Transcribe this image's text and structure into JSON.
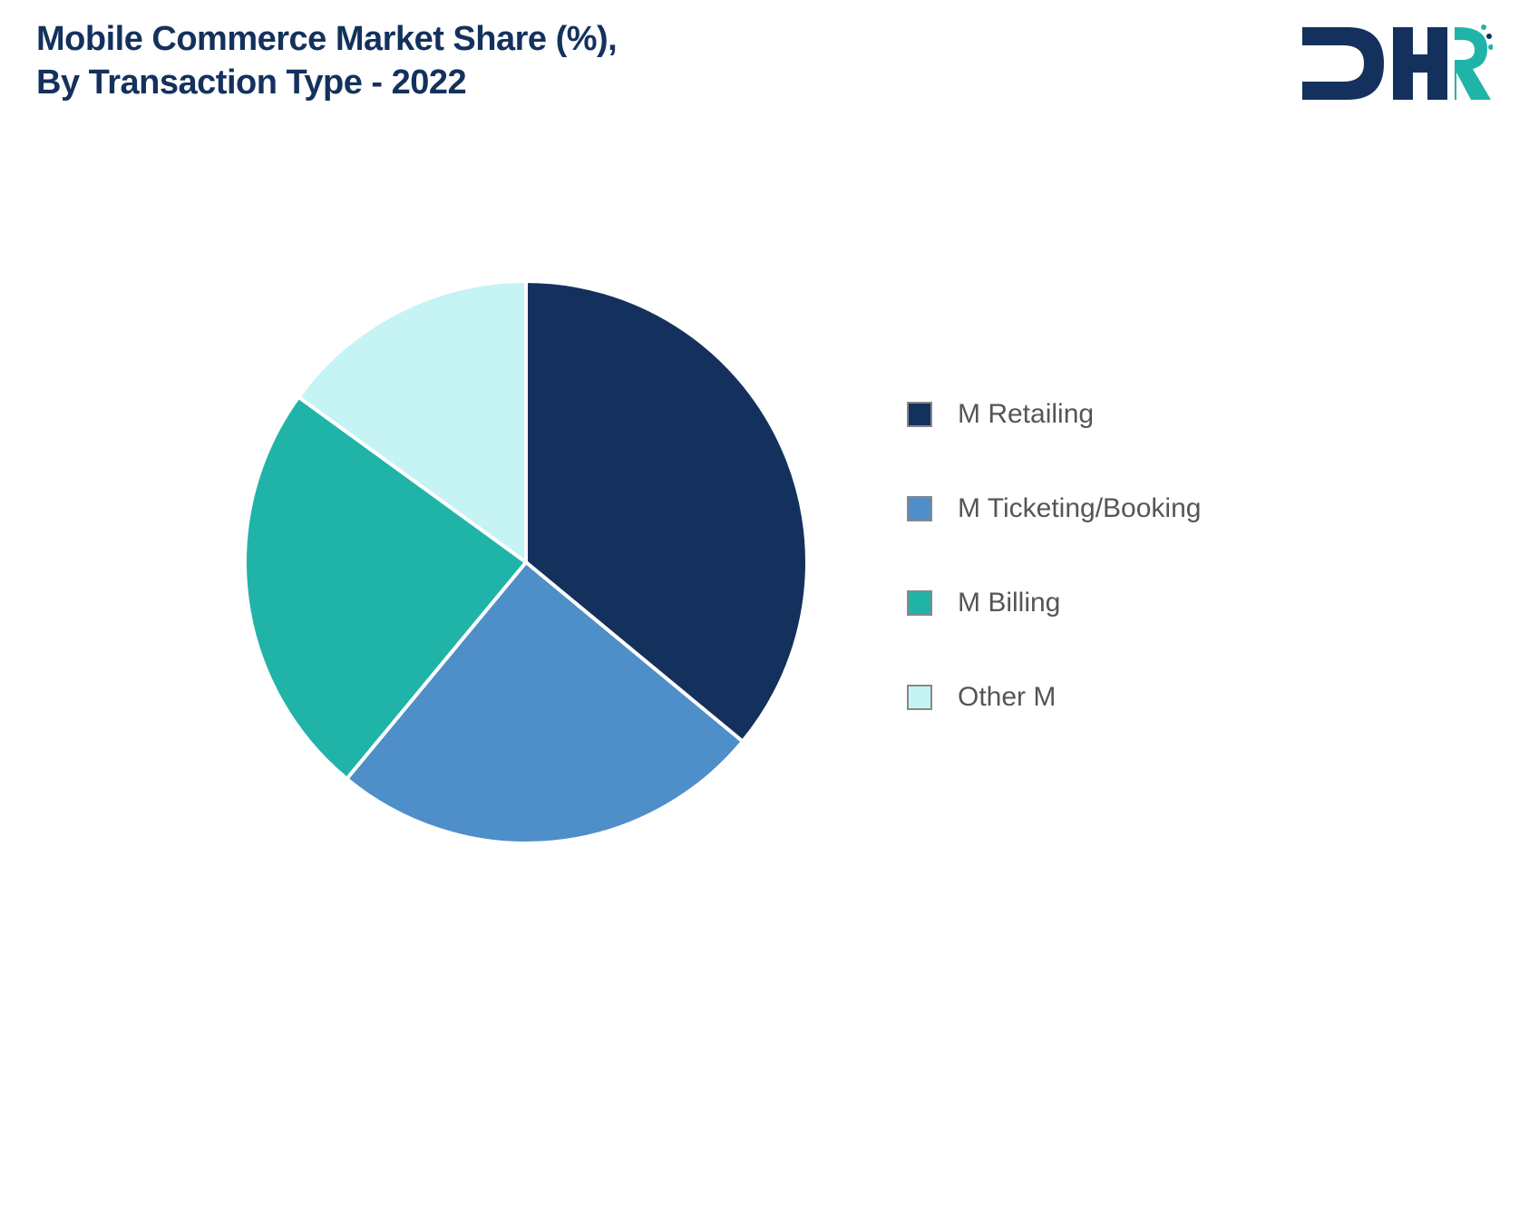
{
  "title_line1": "Mobile Commerce Market Share (%),",
  "title_line2": "By Transaction Type - 2022",
  "title_color": "#14315e",
  "chart": {
    "type": "pie",
    "start_angle_deg": 0,
    "stroke_color": "#ffffff",
    "stroke_width": 4,
    "background_color": "#ffffff",
    "slices": [
      {
        "label": "M Retailing",
        "value": 36,
        "color": "#14315e"
      },
      {
        "label": "M Ticketing/Booking",
        "value": 25,
        "color": "#4e8ec9"
      },
      {
        "label": "M Billing",
        "value": 24,
        "color": "#20b4a9"
      },
      {
        "label": "Other M",
        "value": 15,
        "color": "#c6f3f4"
      }
    ]
  },
  "legend": {
    "font_size": 30,
    "text_color": "#555555",
    "swatch_border": "#888888"
  },
  "logo": {
    "text": "DHR",
    "main_color": "#14315e",
    "accent_color": "#20b4a9"
  }
}
